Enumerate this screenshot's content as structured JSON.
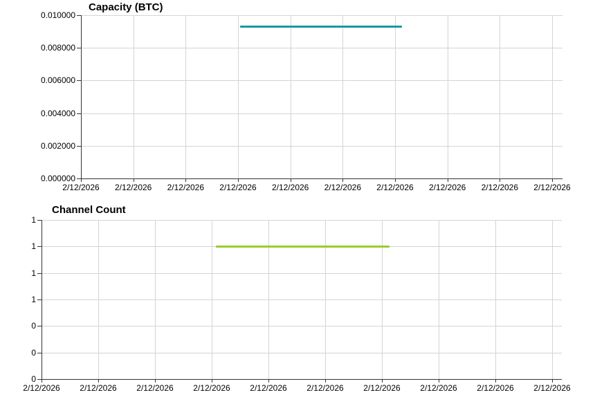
{
  "chart_data": [
    {
      "type": "line",
      "title": "Capacity (BTC)",
      "y_axis": {
        "min": 0,
        "max": 0.01,
        "tick_labels_top_to_bottom": [
          "0.010000",
          "0.008000",
          "0.006000",
          "0.004000",
          "0.002000",
          "0.000000"
        ]
      },
      "x_axis": {
        "tick_labels": [
          "2/12/2026",
          "2/12/2026",
          "2/12/2026",
          "2/12/2026",
          "2/12/2026",
          "2/12/2026",
          "2/12/2026",
          "2/12/2026",
          "2/12/2026",
          "2/12/2026"
        ]
      },
      "series": [
        {
          "name": "capacity-btc",
          "color": "#1797A0",
          "value": 0.0093,
          "x_start_frac": 0.3305,
          "x_end_frac": 0.6667
        }
      ],
      "grid": true,
      "legend": false
    },
    {
      "type": "line",
      "title": "Channel Count",
      "y_axis": {
        "min": 0,
        "max": 1.2,
        "tick_labels_top_to_bottom": [
          "1",
          "1",
          "1",
          "1",
          "0",
          "0",
          "0"
        ]
      },
      "x_axis": {
        "tick_labels": [
          "2/12/2026",
          "2/12/2026",
          "2/12/2026",
          "2/12/2026",
          "2/12/2026",
          "2/12/2026",
          "2/12/2026",
          "2/12/2026",
          "2/12/2026",
          "2/12/2026"
        ]
      },
      "series": [
        {
          "name": "channel-count",
          "color": "#9ACB2D",
          "value": 1,
          "x_start_frac": 0.335,
          "x_end_frac": 0.669
        }
      ],
      "grid": true,
      "legend": false
    }
  ]
}
